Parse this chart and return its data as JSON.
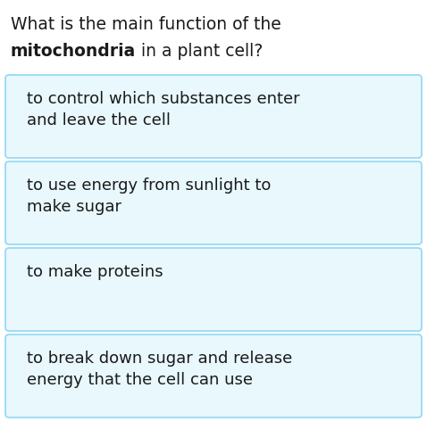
{
  "title_line1": "What is the main function of the",
  "title_bold": "mitochondria",
  "title_rest": " in a plant cell?",
  "options": [
    "to control which substances enter\nand leave the cell",
    "to use energy from sunlight to\nmake sugar",
    "to make proteins",
    "to break down sugar and release\nenergy that the cell can use"
  ],
  "bg_color": "#ffffff",
  "box_face_color": "#e8f8fd",
  "box_edge_color": "#90d8f0",
  "text_color": "#1a1a1a",
  "title_fontsize": 13.5,
  "option_fontsize": 13.0,
  "fig_width": 4.78,
  "fig_height": 5.0,
  "dpi": 100
}
